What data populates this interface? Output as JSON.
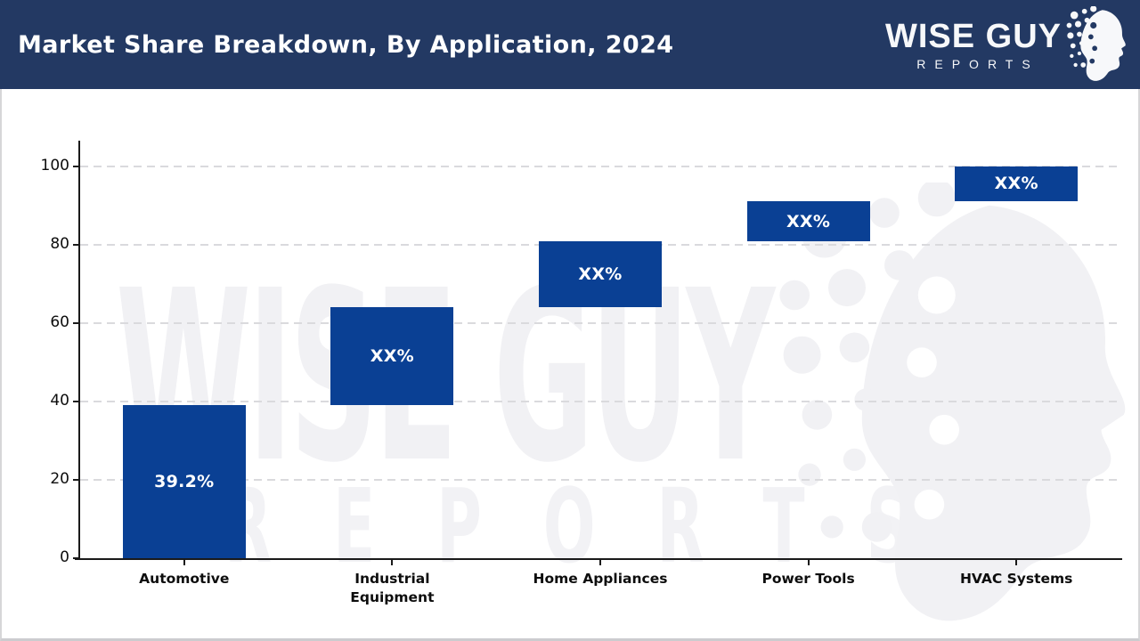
{
  "header": {
    "title": "Market Share Breakdown, By Application, 2024",
    "bg_color": "#233963",
    "logo": {
      "line1": "WISE GUY",
      "line2": "REPORTS"
    }
  },
  "watermark": {
    "line1": "WISE GUY",
    "line2": "REPORTS"
  },
  "chart_data": {
    "type": "bar",
    "variant": "waterfall",
    "title": "Market Share Breakdown, By Application, 2024",
    "categories": [
      "Automotive",
      "Industrial Equipment",
      "Home Appliances",
      "Power Tools",
      "HVAC Systems"
    ],
    "tick_labels": [
      "Automotive",
      "Industrial\nEquipment",
      "Home Appliances",
      "Power Tools",
      "HVAC Systems"
    ],
    "bars": [
      {
        "category": "Automotive",
        "start": 0,
        "end": 39.2,
        "value_label": "39.2%"
      },
      {
        "category": "Industrial Equipment",
        "start": 39.2,
        "end": 64.0,
        "value_label": "XX%"
      },
      {
        "category": "Home Appliances",
        "start": 64.0,
        "end": 80.8,
        "value_label": "XX%"
      },
      {
        "category": "Power Tools",
        "start": 80.8,
        "end": 91.2,
        "value_label": "XX%"
      },
      {
        "category": "HVAC Systems",
        "start": 91.2,
        "end": 100,
        "value_label": "XX%"
      }
    ],
    "ylim": [
      0,
      100
    ],
    "yticks": [
      0,
      20,
      40,
      60,
      80,
      100
    ],
    "xlabel": "",
    "ylabel": "",
    "grid": "horizontal-dashed",
    "legend": "none",
    "bar_color": "#0A4094",
    "bar_label_color": "#FFFFFF"
  }
}
